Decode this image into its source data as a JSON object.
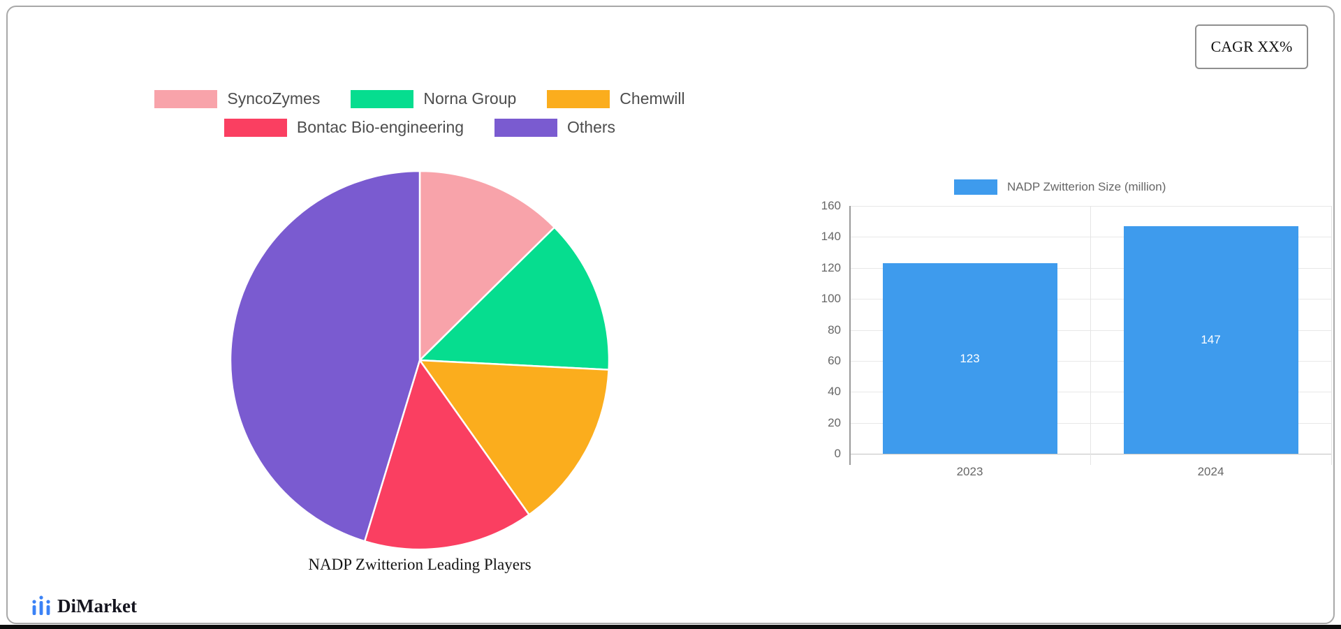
{
  "cagr": {
    "label": "CAGR XX%"
  },
  "logo": {
    "text": "DiMarket",
    "icon_color": "#3b82f6"
  },
  "colors": {
    "pink": "#f8a3aa",
    "green": "#06dd8f",
    "orange": "#fbad1d",
    "red": "#fa3f61",
    "purple": "#7a5bd0",
    "blue": "#3e9bed"
  },
  "chart_data": [
    {
      "type": "pie",
      "title": "NADP Zwitterion Leading Players",
      "labels": [
        "SyncoZymes",
        "Norna Group",
        "Chemwill",
        "Bontac Bio-engineering",
        "Others"
      ],
      "values_pct": [
        12.6,
        13.2,
        14.4,
        14.5,
        45.3
      ],
      "colors": [
        "#f8a3aa",
        "#06dd8f",
        "#fbad1d",
        "#fa3f61",
        "#7a5bd0"
      ],
      "start_angle_deg": 0,
      "direction": "clockwise",
      "legend_position": "top",
      "legend_rows": [
        [
          {
            "label": "SyncoZymes",
            "color": "#f8a3aa"
          },
          {
            "label": "Norna Group",
            "color": "#06dd8f"
          },
          {
            "label": "Chemwill",
            "color": "#fbad1d"
          }
        ],
        [
          {
            "label": "Bontac Bio-engineering",
            "color": "#fa3f61"
          },
          {
            "label": "Others",
            "color": "#7a5bd0"
          }
        ]
      ]
    },
    {
      "type": "bar",
      "legend": "NADP Zwitterion Size (million)",
      "categories": [
        "2023",
        "2024"
      ],
      "values": [
        123,
        147
      ],
      "bar_color": "#3e9bed",
      "value_label_color": "#ffffff",
      "ylim": [
        0,
        160
      ],
      "yticks": [
        0,
        20,
        40,
        60,
        80,
        100,
        120,
        140,
        160
      ],
      "grid": true,
      "legend_position": "top"
    }
  ]
}
